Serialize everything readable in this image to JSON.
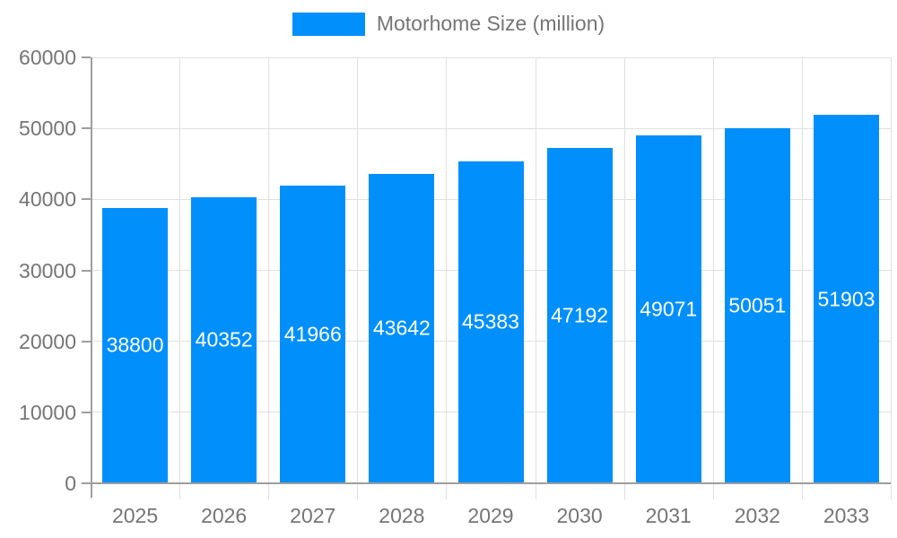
{
  "legend": {
    "label": "Motorhome Size (million)"
  },
  "colors": {
    "bar": "#008FFB",
    "grid": "#E0E0E0",
    "axis": "#9E9E9E",
    "tick_label": "#757575",
    "legend_text": "#757575",
    "value_label": "#FFFFFF",
    "background": "#FFFFFF"
  },
  "chart_data": {
    "type": "bar",
    "title": "Motorhome Size (million)",
    "categories": [
      "2025",
      "2026",
      "2027",
      "2028",
      "2029",
      "2030",
      "2031",
      "2032",
      "2033"
    ],
    "series": [
      {
        "name": "Motorhome Size (million)",
        "values": [
          38800,
          40352,
          41966,
          43642,
          45383,
          47192,
          49071,
          50051,
          51903
        ]
      }
    ],
    "xlabel": "",
    "ylabel": "",
    "ylim": [
      0,
      60000
    ],
    "ytick_step": 10000,
    "ytick_labels": [
      "0",
      "10000",
      "20000",
      "30000",
      "40000",
      "50000",
      "60000"
    ],
    "grid": true,
    "legend_position": "top-center",
    "value_label_position": "inside-center"
  }
}
